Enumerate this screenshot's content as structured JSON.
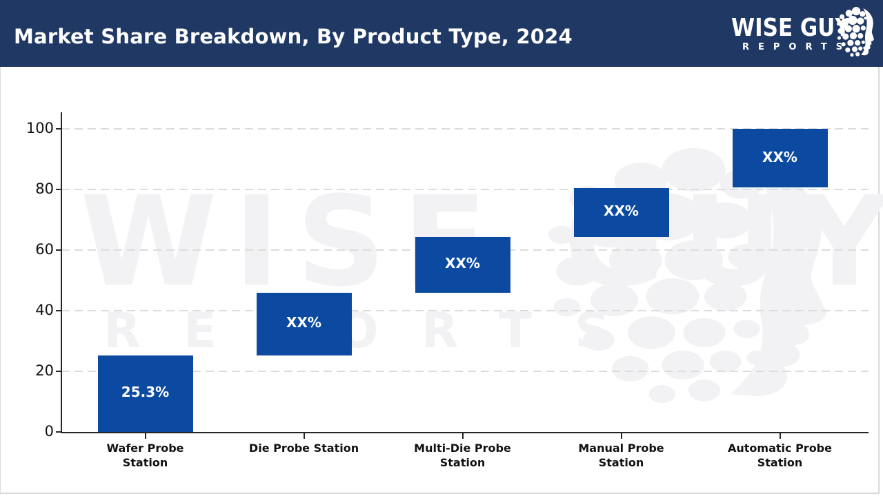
{
  "header": {
    "title": "Market Share Breakdown, By Product Type, 2024",
    "logo": {
      "wordmark": "WISE GUY",
      "subtext": "REPORTS"
    }
  },
  "watermark": {
    "line1": "WISE GUY",
    "line2": "REPORTS"
  },
  "colors": {
    "header_bg": "#1f3864",
    "bar_fill": "#0b4aa0",
    "grid": "#dcdcdc",
    "axis": "#262626",
    "bar_label_text": "#ffffff",
    "watermark": "#f2f2f4",
    "background": "#ffffff"
  },
  "chart_data": {
    "type": "bar",
    "subtype": "waterfall-floating-bars",
    "title": "Market Share Breakdown, By Product Type, 2024",
    "xlabel": "",
    "ylabel": "",
    "ylim": [
      0,
      100
    ],
    "yticks": [
      0,
      20,
      40,
      60,
      80,
      100
    ],
    "grid": "horizontal-dashed",
    "legend": "none",
    "categories": [
      "Wafer Probe Station",
      "Die Probe Station",
      "Multi-Die Probe Station",
      "Manual Probe Station",
      "Automatic Probe Station"
    ],
    "bars": [
      {
        "category": "Wafer Probe Station",
        "lines": [
          "Wafer Probe",
          "Station"
        ],
        "start": 0,
        "end": 25.3,
        "label": "25.3%"
      },
      {
        "category": "Die Probe Station",
        "lines": [
          "Die Probe Station"
        ],
        "start": 25.3,
        "end": 46.0,
        "label": "XX%"
      },
      {
        "category": "Multi-Die Probe Station",
        "lines": [
          "Multi-Die Probe",
          "Station"
        ],
        "start": 46.0,
        "end": 64.3,
        "label": "XX%"
      },
      {
        "category": "Manual Probe Station",
        "lines": [
          "Manual Probe",
          "Station"
        ],
        "start": 64.4,
        "end": 80.5,
        "label": "XX%"
      },
      {
        "category": "Automatic Probe Station",
        "lines": [
          "Automatic Probe",
          "Station"
        ],
        "start": 80.6,
        "end": 100,
        "label": "XX%"
      }
    ]
  }
}
